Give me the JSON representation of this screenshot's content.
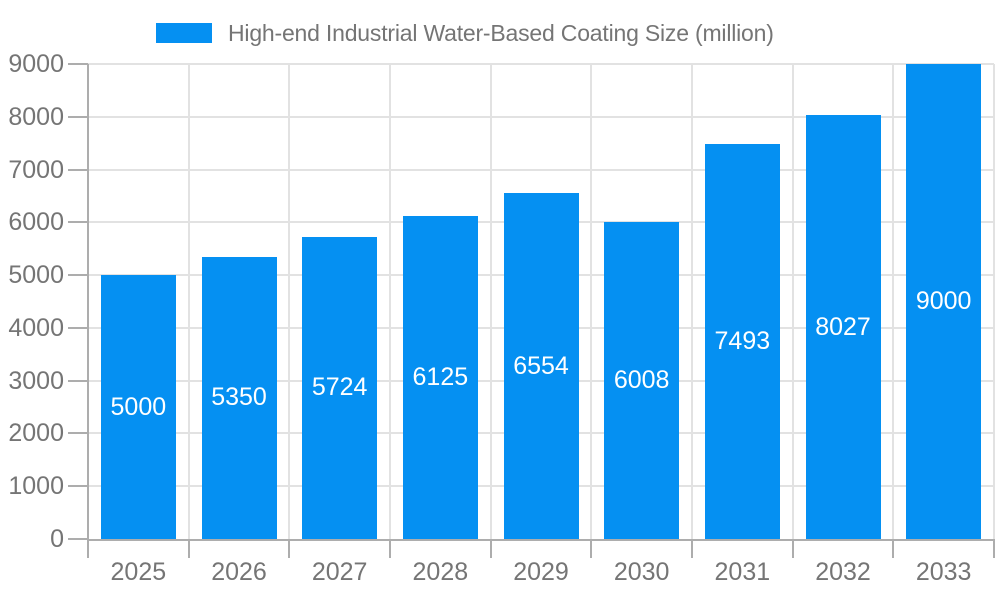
{
  "legend": {
    "label": "High-end Industrial Water-Based Coating Size (million)"
  },
  "chart_data": {
    "type": "bar",
    "title": "High-end Industrial Water-Based Coating Size (million)",
    "series_name": "High-end Industrial Water-Based Coating Size (million)",
    "categories": [
      "2025",
      "2026",
      "2027",
      "2028",
      "2029",
      "2030",
      "2031",
      "2032",
      "2033"
    ],
    "values": [
      5000,
      5350,
      5724,
      6125,
      6554,
      6008,
      7493,
      8027,
      9000
    ],
    "xlabel": "",
    "ylabel": "",
    "ylim": [
      0,
      9000
    ],
    "ytick_step": 1000,
    "ytick_labels": [
      "0",
      "1000",
      "2000",
      "3000",
      "4000",
      "5000",
      "6000",
      "7000",
      "8000",
      "9000"
    ],
    "grid": true,
    "legend_position": "top",
    "value_labels": "inside-center",
    "colors": {
      "bar": "#0590f2",
      "value_label": "#ffffff",
      "axis_text": "#757575",
      "gridline": "#e2e2e2",
      "axis_line": "#adadad",
      "background": "#ffffff"
    }
  }
}
